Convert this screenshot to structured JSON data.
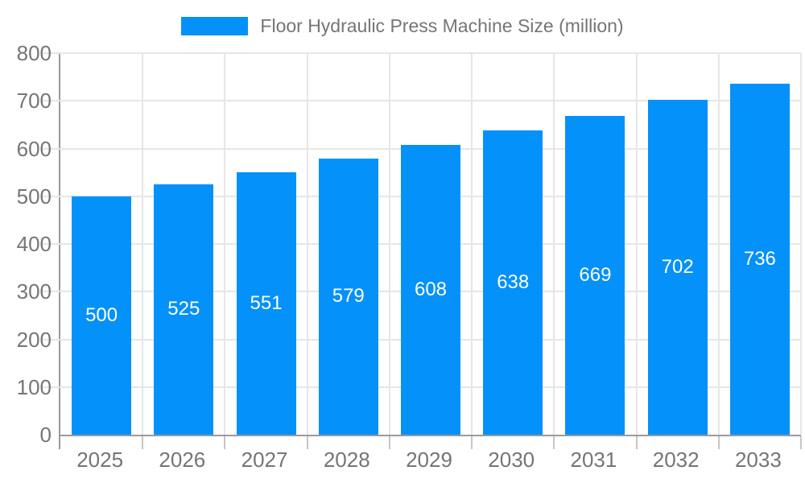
{
  "legend": {
    "label": "Floor Hydraulic Press Machine Size (million)"
  },
  "chart_data": {
    "type": "bar",
    "title": "Floor Hydraulic Press Machine Size (million)",
    "categories": [
      "2025",
      "2026",
      "2027",
      "2028",
      "2029",
      "2030",
      "2031",
      "2032",
      "2033"
    ],
    "values": [
      500,
      525,
      551,
      579,
      608,
      638,
      669,
      702,
      736
    ],
    "xlabel": "",
    "ylabel": "",
    "ylim": [
      0,
      800
    ],
    "yticks": [
      0,
      100,
      200,
      300,
      400,
      500,
      600,
      700,
      800
    ],
    "grid": true,
    "legend_position": "top",
    "bar_labels_visible": true,
    "colors": {
      "bar": "#0591fa",
      "bar_label_text": "#ffffff",
      "axis_text": "#757575",
      "legend_text": "#757575",
      "gridline": "#e6e6e6",
      "axis_line": "#9a9a9a",
      "tick": "#c6c6c6",
      "background": "#ffffff"
    }
  }
}
